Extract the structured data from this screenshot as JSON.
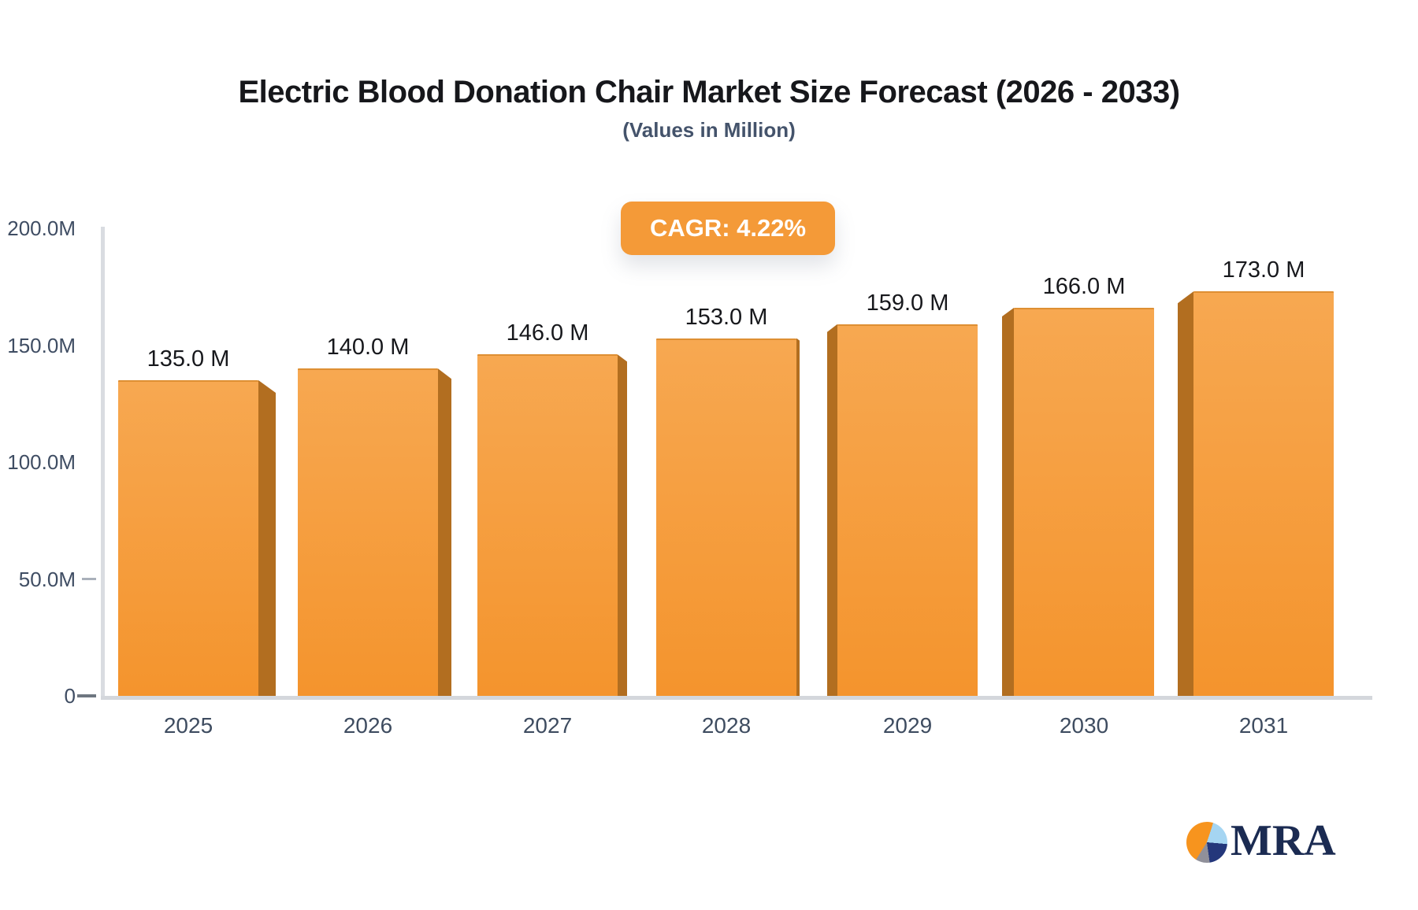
{
  "title": "Electric Blood Donation Chair Market Size Forecast (2026 - 2033)",
  "subtitle": "(Values in Million)",
  "badge": {
    "label": "CAGR: 4.22%"
  },
  "chart_data": {
    "type": "bar",
    "categories": [
      "2025",
      "2026",
      "2027",
      "2028",
      "2029",
      "2030",
      "2031"
    ],
    "values": [
      135,
      140,
      146,
      153,
      159,
      166,
      173
    ],
    "value_labels": [
      "135.0 M",
      "140.0 M",
      "146.0 M",
      "153.0 M",
      "159.0 M",
      "166.0 M",
      "173.0 M"
    ],
    "title": "Electric Blood Donation Chair Market Size Forecast (2026 - 2033)",
    "subtitle": "(Values in Million)",
    "annotation": "CAGR: 4.22%",
    "unit": "Million",
    "xlabel": "",
    "ylabel": "",
    "ylim": [
      0,
      200
    ],
    "yticks": [
      {
        "label": "200.0M",
        "value": 200,
        "tick_mark": false
      },
      {
        "label": "150.0M",
        "value": 150,
        "tick_mark": false
      },
      {
        "label": "100.0M",
        "value": 100,
        "tick_mark": false
      },
      {
        "label": "50.0M",
        "value": 50,
        "tick_mark": true
      },
      {
        "label": "0",
        "value": 0,
        "tick_mark": true
      }
    ],
    "grid": false,
    "legend": false,
    "bar_style": "3d-orange-gradient"
  },
  "logo": {
    "text": "MRA"
  },
  "colors": {
    "badge_bg": "#F49A38",
    "bar_face_top": "#F7A851",
    "bar_face_bottom": "#F4942D",
    "bar_face_edge": "#DE8F33",
    "bar_side": "#B26E20",
    "axis": "#D9DCE1",
    "baseline": "#D4D7DC",
    "tick_dark": "#6E7680",
    "tick_light": "#A9B0BA",
    "axis_label": "#3F4D63",
    "value_label": "#17181C",
    "title": "#16171B",
    "subtitle": "#44536B",
    "logo_navy": "#1B2B52",
    "logo_orange": "#F7941E",
    "logo_blue": "#A5D5F2",
    "logo_gray": "#90909A"
  }
}
